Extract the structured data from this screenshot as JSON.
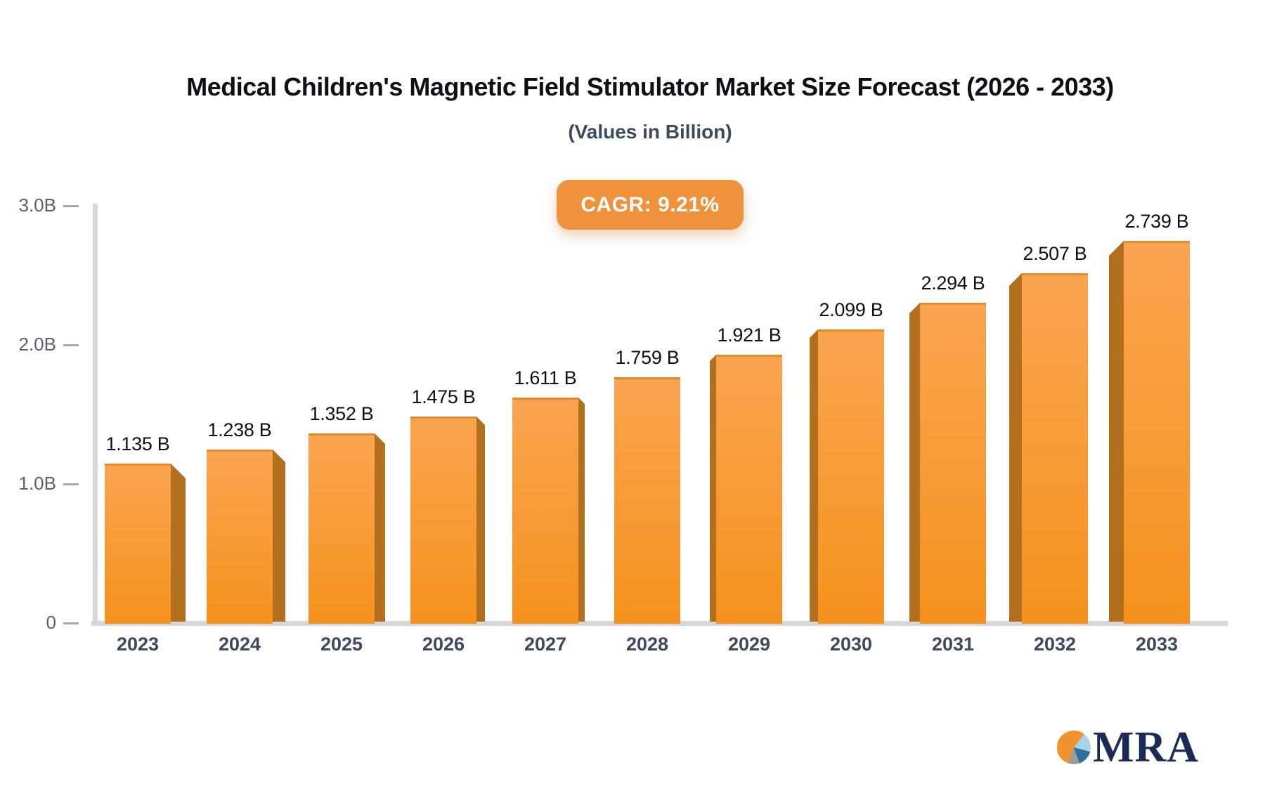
{
  "title": "Medical Children's Magnetic Field Stimulator Market Size Forecast (2026 - 2033)",
  "subtitle": "(Values in Billion)",
  "badge": {
    "label": "CAGR: 9.21%"
  },
  "chart_data": {
    "type": "bar",
    "categories": [
      "2023",
      "2024",
      "2025",
      "2026",
      "2027",
      "2028",
      "2029",
      "2030",
      "2031",
      "2032",
      "2033"
    ],
    "values": [
      1.135,
      1.238,
      1.352,
      1.475,
      1.611,
      1.759,
      1.921,
      2.099,
      2.294,
      2.507,
      2.739
    ],
    "value_labels": [
      "1.135 B",
      "1.238 B",
      "1.352 B",
      "1.475 B",
      "1.611 B",
      "1.759 B",
      "1.921 B",
      "2.099 B",
      "2.294 B",
      "2.507 B",
      "2.739 B"
    ],
    "title": "Medical Children's Magnetic Field Stimulator Market Size Forecast (2026 - 2033)",
    "subtitle": "(Values in Billion)",
    "xlabel": "",
    "ylabel": "",
    "ylim": [
      0,
      3
    ],
    "yticks": [
      {
        "value": 0,
        "label": "0"
      },
      {
        "value": 1,
        "label": "1.0B"
      },
      {
        "value": 2,
        "label": "2.0B"
      },
      {
        "value": 3,
        "label": "3.0B"
      }
    ],
    "grid": false,
    "legend": "none",
    "annotation": "CAGR: 9.21%"
  },
  "colors": {
    "bar_front_top": "#f9a450",
    "bar_front_bottom": "#f6921e",
    "bar_top_edge": "#e8882c",
    "bar_side": "#b26f1e",
    "badge_bg": "#f0913c",
    "axis_line": "#d6d7dc",
    "tick_label": "#59616f",
    "year_label": "#3d4a5c",
    "value_label": "#0d1117",
    "logo_navy": "#1b2a57",
    "logo_orange": "#f0922e",
    "logo_lightblue": "#a9d3e8",
    "logo_blue": "#2e6da0",
    "logo_gray": "#9b9b9b"
  },
  "logo": {
    "text": "MRA"
  }
}
